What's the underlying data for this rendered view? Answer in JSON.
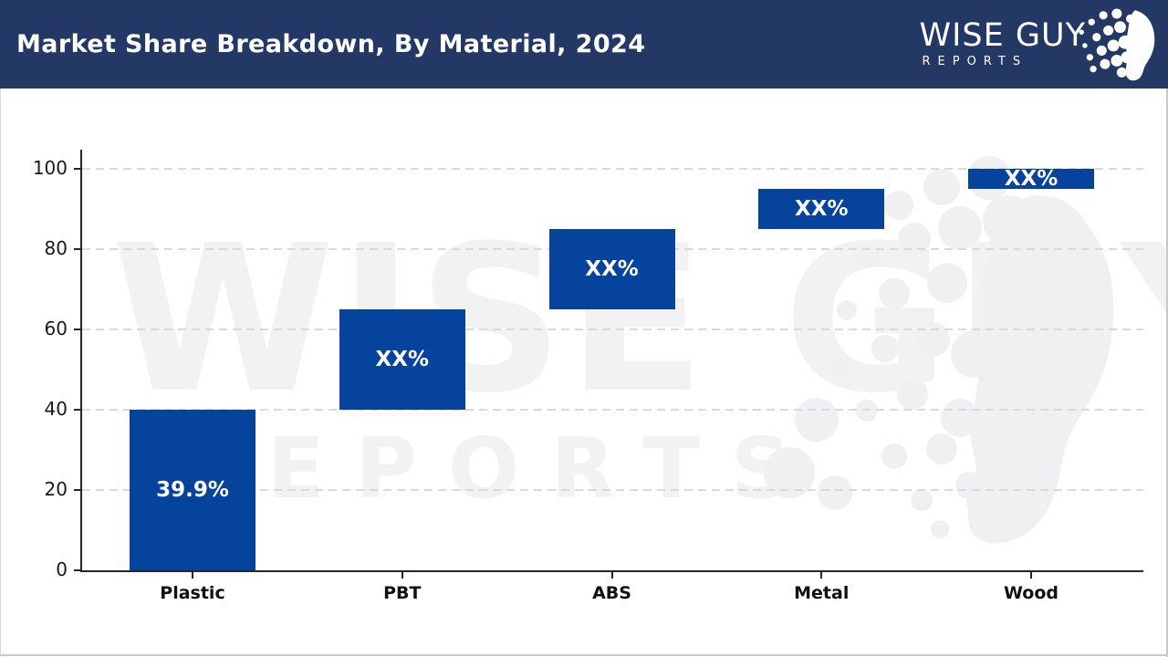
{
  "header": {
    "title": "Market Share Breakdown, By Material, 2024",
    "bg_color": "#233864",
    "logo": {
      "line1": "WISE GUY",
      "line2": "REPORTS",
      "face_icon": "face-profile-dots-icon"
    }
  },
  "watermark": {
    "line1": "WISE GUY",
    "line2": "REPORTS",
    "face_icon": "face-profile-dots-watermark-icon"
  },
  "chart_data": {
    "type": "bar",
    "subtype": "waterfall",
    "title": "Market Share Breakdown, By Material, 2024",
    "categories": [
      "Plastic",
      "PBT",
      "ABS",
      "Metal",
      "Wood"
    ],
    "segments": [
      {
        "category": "Plastic",
        "start": 0,
        "end": 39.9,
        "label": "39.9%"
      },
      {
        "category": "PBT",
        "start": 40,
        "end": 65,
        "label": "XX%"
      },
      {
        "category": "ABS",
        "start": 65,
        "end": 85,
        "label": "XX%"
      },
      {
        "category": "Metal",
        "start": 85,
        "end": 95,
        "label": "XX%"
      },
      {
        "category": "Wood",
        "start": 95,
        "end": 100,
        "label": "XX%"
      }
    ],
    "y_ticks": [
      "0",
      "20",
      "40",
      "60",
      "80",
      "100"
    ],
    "ylim": [
      0,
      105
    ],
    "xlabel": "",
    "ylabel": "",
    "legend": "none",
    "grid": "horizontal-dashed",
    "bar_color": "#05439c",
    "bar_label_color": "#ffffff",
    "axis_color": "#262626",
    "tick_label_color": "#1a1a1a",
    "gridline_color": "#d9d9d9"
  }
}
